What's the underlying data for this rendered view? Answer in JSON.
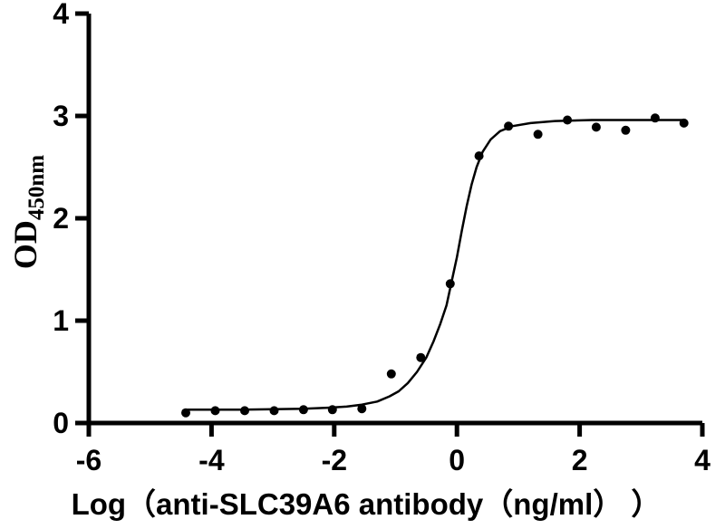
{
  "figure": {
    "background": "#ffffff",
    "foreground": "#000000"
  },
  "chart_data": {
    "type": "scatter",
    "subtype": "sigmoidal-dose-response-with-fit",
    "title": "",
    "xlabel": "Log（anti-SLC39A6 antibody（ng/ml） ）",
    "ylabel_main": "OD",
    "ylabel_sub": "450nm",
    "xlim": [
      -6,
      4
    ],
    "ylim": [
      0,
      4
    ],
    "x_ticks": [
      -6,
      -4,
      -2,
      0,
      2,
      4
    ],
    "y_ticks": [
      0,
      1,
      2,
      3,
      4
    ],
    "grid": false,
    "legend_position": "none",
    "marker": {
      "shape": "circle",
      "color": "#000000",
      "radius": 5
    },
    "line": {
      "color": "#000000",
      "width": 2.5
    },
    "points": [
      [
        -4.42,
        0.1
      ],
      [
        -3.94,
        0.12
      ],
      [
        -3.46,
        0.12
      ],
      [
        -2.98,
        0.12
      ],
      [
        -2.5,
        0.13
      ],
      [
        -2.03,
        0.13
      ],
      [
        -1.55,
        0.14
      ],
      [
        -1.07,
        0.48
      ],
      [
        -0.59,
        0.64
      ],
      [
        -0.11,
        1.36
      ],
      [
        0.36,
        2.61
      ],
      [
        0.84,
        2.9
      ],
      [
        1.32,
        2.82
      ],
      [
        1.8,
        2.96
      ],
      [
        2.27,
        2.89
      ],
      [
        2.75,
        2.86
      ],
      [
        3.23,
        2.98
      ],
      [
        3.7,
        2.93
      ]
    ],
    "curve": [
      [
        -4.42,
        0.13
      ],
      [
        -4.0,
        0.13
      ],
      [
        -3.5,
        0.13
      ],
      [
        -3.0,
        0.135
      ],
      [
        -2.5,
        0.14
      ],
      [
        -2.1,
        0.15
      ],
      [
        -1.8,
        0.16
      ],
      [
        -1.55,
        0.18
      ],
      [
        -1.3,
        0.21
      ],
      [
        -1.1,
        0.26
      ],
      [
        -0.95,
        0.31
      ],
      [
        -0.8,
        0.39
      ],
      [
        -0.65,
        0.5
      ],
      [
        -0.5,
        0.64
      ],
      [
        -0.38,
        0.8
      ],
      [
        -0.27,
        0.97
      ],
      [
        -0.17,
        1.15
      ],
      [
        -0.08,
        1.4
      ],
      [
        0.0,
        1.62
      ],
      [
        0.08,
        1.88
      ],
      [
        0.16,
        2.12
      ],
      [
        0.24,
        2.33
      ],
      [
        0.32,
        2.5
      ],
      [
        0.42,
        2.65
      ],
      [
        0.55,
        2.77
      ],
      [
        0.7,
        2.85
      ],
      [
        0.9,
        2.9
      ],
      [
        1.2,
        2.93
      ],
      [
        1.6,
        2.95
      ],
      [
        2.2,
        2.96
      ],
      [
        3.0,
        2.96
      ],
      [
        3.7,
        2.96
      ]
    ]
  }
}
